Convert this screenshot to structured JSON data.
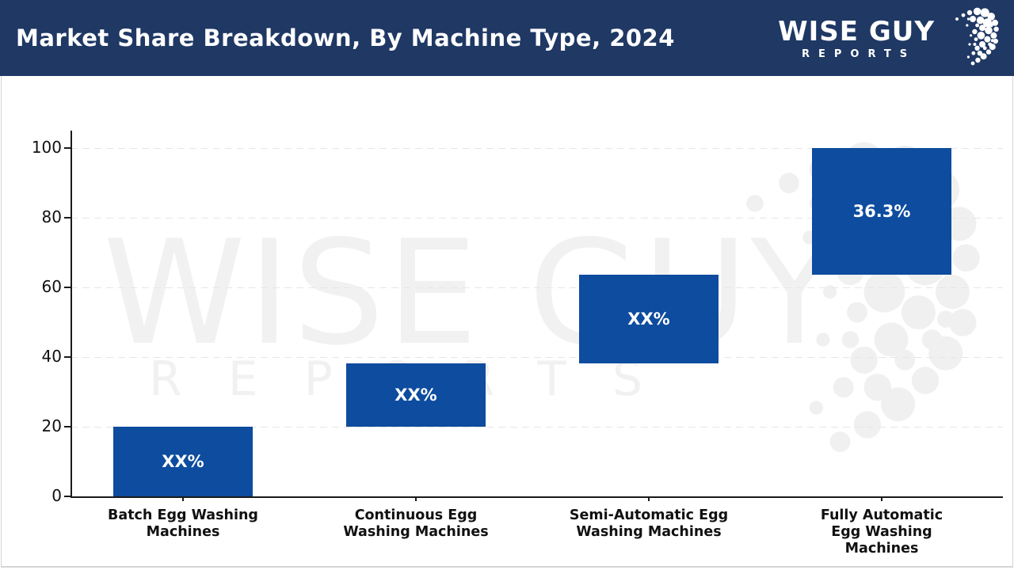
{
  "header": {
    "title": "Market Share Breakdown, By Machine Type, 2024",
    "bg_color": "#1f3864",
    "logo": {
      "wordmark": "WISE GUY",
      "subtitle": "REPORTS"
    }
  },
  "watermark": {
    "line1": "WISE GUY",
    "line2": "REPORTS"
  },
  "chart_data": {
    "type": "bar",
    "subtype": "floating-segment-bars (stacked breakdown shown as offset blocks)",
    "title": "Market Share Breakdown, By Machine Type, 2024",
    "categories": [
      "Batch Egg Washing Machines",
      "Continuous Egg Washing Machines",
      "Semi-Automatic Egg Washing Machines",
      "Fully Automatic Egg Washing Machines"
    ],
    "category_label_lines": [
      [
        "Batch Egg Washing",
        "Machines"
      ],
      [
        "Continuous Egg",
        "Washing Machines"
      ],
      [
        "Semi-Automatic Egg",
        "Washing Machines"
      ],
      [
        "Fully Automatic",
        "Egg Washing",
        "Machines"
      ]
    ],
    "segments": [
      {
        "category": "Batch Egg Washing Machines",
        "start": 0,
        "end": 20,
        "value_label": "XX%"
      },
      {
        "category": "Continuous Egg Washing Machines",
        "start": 20,
        "end": 38.2,
        "value_label": "XX%"
      },
      {
        "category": "Semi-Automatic Egg Washing Machines",
        "start": 38.2,
        "end": 63.7,
        "value_label": "XX%"
      },
      {
        "category": "Fully Automatic Egg Washing Machines",
        "start": 63.7,
        "end": 100,
        "value_label": "36.3%"
      }
    ],
    "yticks": [
      0,
      20,
      40,
      60,
      80,
      100
    ],
    "ylim": [
      0,
      105
    ],
    "xlabel": "",
    "ylabel": "",
    "legend": "none",
    "grid": {
      "axis": "y",
      "style": "dashed",
      "color": "#e6e6e6"
    },
    "bar_color": "#0d4c9e",
    "bar_label_color": "#ffffff"
  }
}
